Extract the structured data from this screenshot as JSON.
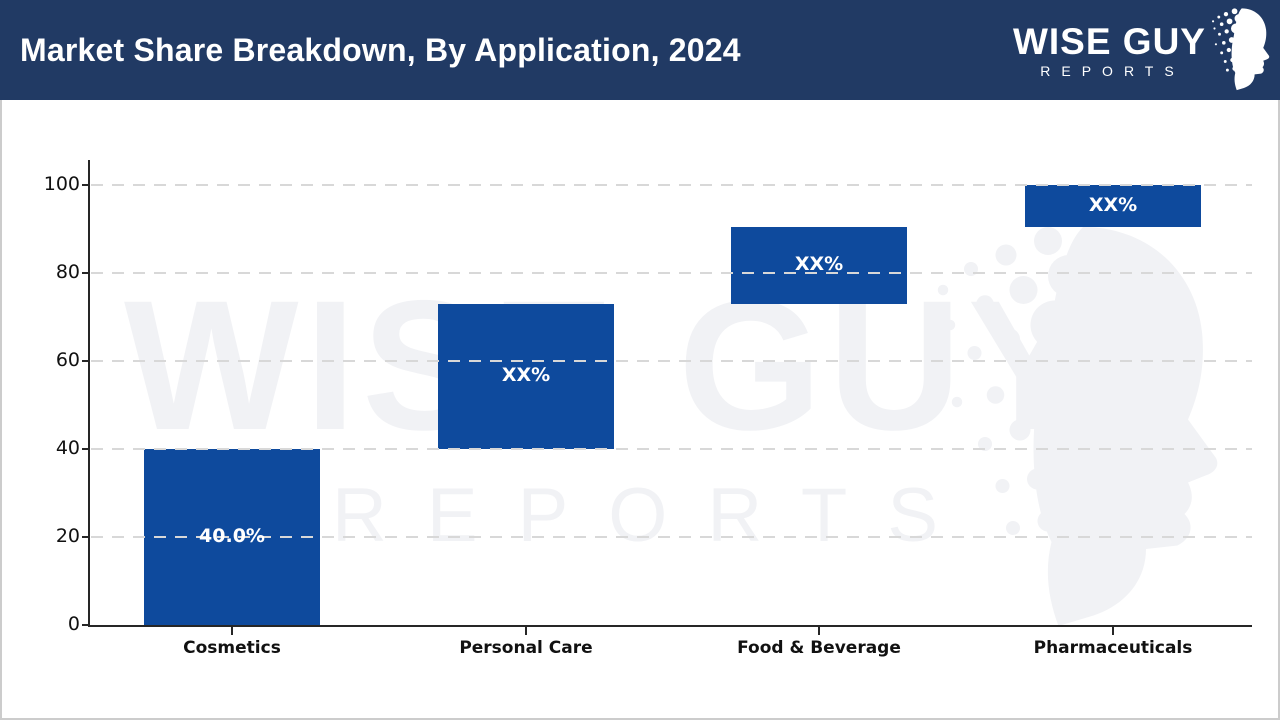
{
  "header": {
    "title": "Market Share Breakdown, By Application, 2024"
  },
  "logo": {
    "wordmark": "WISE GUY",
    "subtext": "REPORTS"
  },
  "watermark": {
    "wordmark": "WISE GUY",
    "subtext": "REPORTS"
  },
  "colors": {
    "header_bg": "#213A64",
    "bar_fill": "#0E4A9D",
    "bar_label_text": "#FFFFFF",
    "gridline": "#D8D8D8",
    "axis": "#262626",
    "tick_text": "#111111",
    "watermark": "#F1F2F5",
    "frame_border": "#CCCCCC"
  },
  "chart_data": {
    "type": "bar",
    "subtype": "stacked-percentage-waterfall",
    "title": "Market Share Breakdown, By Application, 2024",
    "categories": [
      "Cosmetics",
      "Personal Care",
      "Food & Beverage",
      "Pharmaceuticals"
    ],
    "bars": [
      {
        "category": "Cosmetics",
        "start": 0,
        "end": 40,
        "label": "40.0%"
      },
      {
        "category": "Personal Care",
        "start": 40,
        "end": 73,
        "label": "XX%"
      },
      {
        "category": "Food & Beverage",
        "start": 73,
        "end": 90.5,
        "label": "XX%"
      },
      {
        "category": "Pharmaceuticals",
        "start": 90.5,
        "end": 100,
        "label": "XX%"
      }
    ],
    "xlabel": "",
    "ylabel": "",
    "ylim": [
      0,
      100
    ],
    "yticks": [
      0,
      20,
      40,
      60,
      80,
      100
    ],
    "grid": "horizontal-dashed",
    "legend": "none"
  }
}
